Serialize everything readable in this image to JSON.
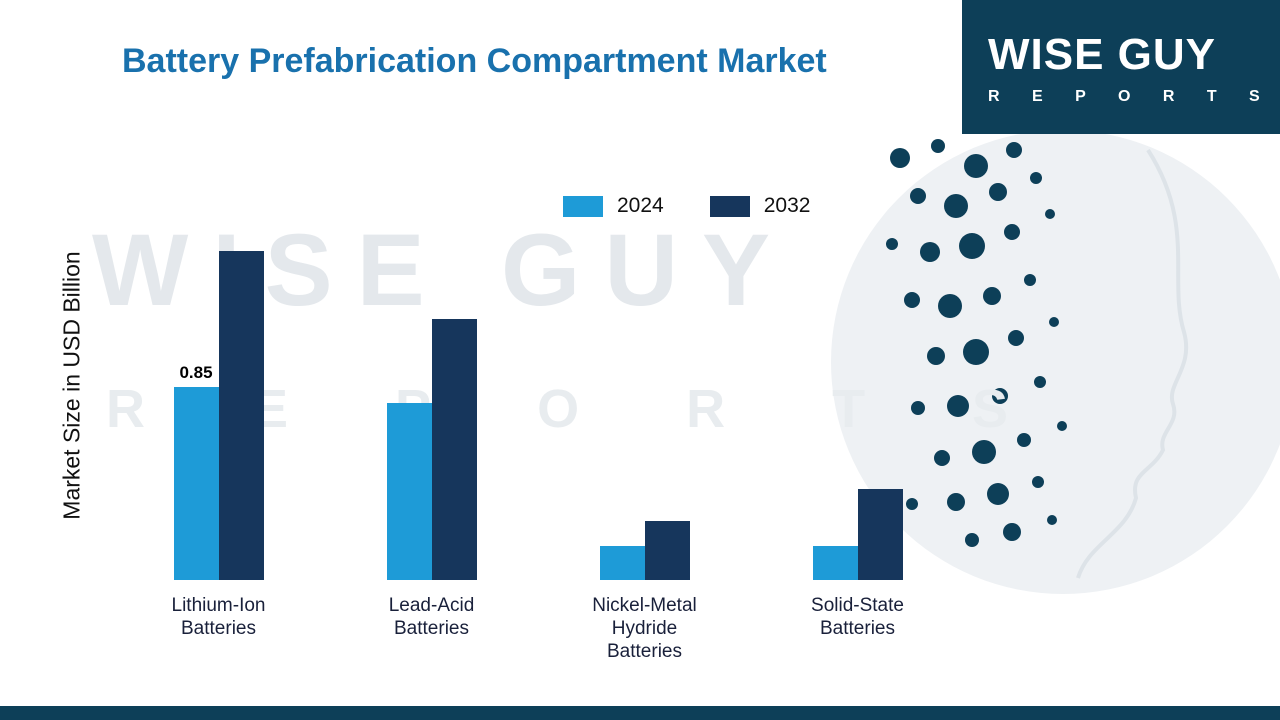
{
  "title": "Battery Prefabrication Compartment Market",
  "brand": {
    "name": "WISE GUY",
    "reports": "R E P O R T S"
  },
  "watermark": {
    "line1": "WISE GUY",
    "line2": "R E P O R T S"
  },
  "colors": {
    "title_blue": "#1971ad",
    "brand_dark": "#0d3f58",
    "series_2024": "#1e9bd7",
    "series_2032": "#16365c",
    "watermark_gray": "#e4e8ec"
  },
  "chart_data": {
    "type": "bar",
    "title": "Battery Prefabrication Compartment Market",
    "xlabel": "",
    "ylabel": "Market Size in USD Billion",
    "categories": [
      "Lithium-Ion Batteries",
      "Lead-Acid Batteries",
      "Nickel-Metal Hydride Batteries",
      "Solid-State Batteries"
    ],
    "category_lines": [
      [
        "Lithium-Ion",
        "Batteries"
      ],
      [
        "Lead-Acid",
        "Batteries"
      ],
      [
        "Nickel-Metal",
        "Hydride",
        "Batteries"
      ],
      [
        "Solid-State",
        "Batteries"
      ]
    ],
    "series": [
      {
        "name": "2024",
        "color": "#1e9bd7",
        "values": [
          0.85,
          0.78,
          0.15,
          0.15
        ]
      },
      {
        "name": "2032",
        "color": "#16365c",
        "values": [
          1.45,
          1.15,
          0.26,
          0.4
        ]
      }
    ],
    "annotations": [
      {
        "series_index": 0,
        "category_index": 0,
        "text": "0.85"
      }
    ],
    "ylim": [
      0,
      1.5
    ],
    "grid": false,
    "legend_position": "top-center"
  }
}
